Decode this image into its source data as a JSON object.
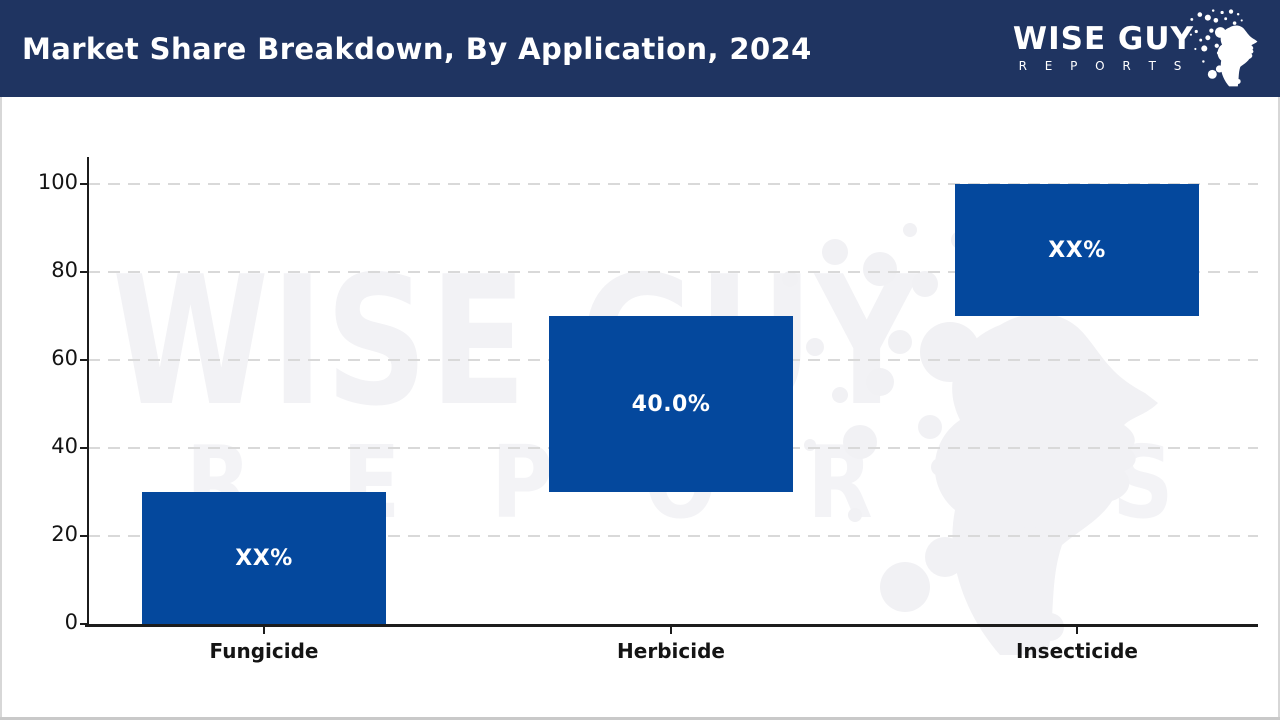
{
  "header": {
    "title": "Market Share Breakdown, By Application, 2024",
    "bg_color": "#1f3461",
    "logo": {
      "line1": "WISE GUY",
      "line2": "R E P O R T S"
    }
  },
  "watermark": {
    "line1": "WISE GUY",
    "line2": "R E P O R T S"
  },
  "chart_data": {
    "type": "bar",
    "variant": "floating-segment-waterfall",
    "title": "Market Share Breakdown, By Application, 2024",
    "categories": [
      "Fungicide",
      "Herbicide",
      "Insecticide"
    ],
    "series": [
      {
        "name": "Market share (%)",
        "segments": [
          {
            "category": "Fungicide",
            "start": 0,
            "end": 30,
            "value_label": "XX%"
          },
          {
            "category": "Herbicide",
            "start": 30,
            "end": 70,
            "value_label": "40.0%"
          },
          {
            "category": "Insecticide",
            "start": 70,
            "end": 100,
            "value_label": "XX%"
          }
        ]
      }
    ],
    "xlabel": "",
    "ylabel": "",
    "ylim": [
      0,
      100
    ],
    "yticks": [
      0,
      20,
      40,
      60,
      80,
      100
    ],
    "grid": "horizontal-dashed",
    "legend": "none",
    "colors": {
      "bar": "#04489d",
      "bar_label": "#ffffff",
      "axis": "#1c1c1c",
      "grid": "#d9d9d9",
      "tick_label": "#141414",
      "header_bg": "#1f3461",
      "watermark": "#f2f2f5"
    }
  }
}
